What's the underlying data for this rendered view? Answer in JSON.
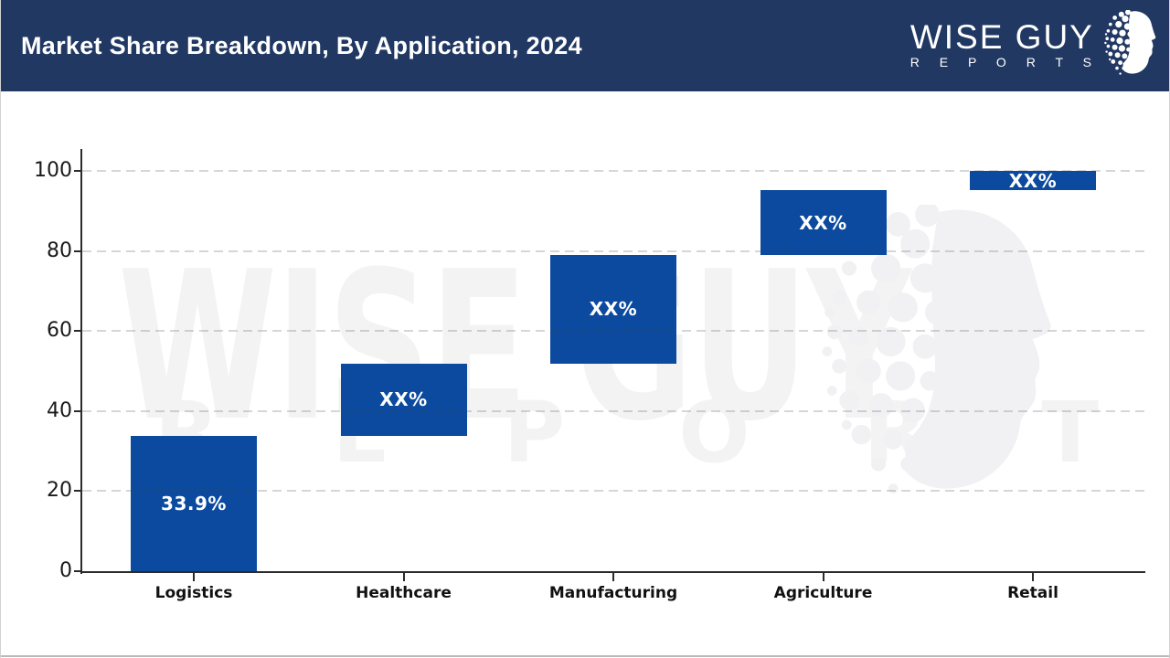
{
  "header": {
    "title": "Market Share Breakdown, By Application, 2024",
    "logo": {
      "line1": "WISE GUY",
      "line2": "R E P O R T S"
    }
  },
  "watermark": {
    "line1": "WISE GUY",
    "line2": "R E P O R T S"
  },
  "colors": {
    "header_bg": "#213863",
    "bar_fill": "#0b4a9e",
    "bar_label": "#ffffff",
    "axis": "#2b2b2b",
    "watermark": "#f3f3f3"
  },
  "chart_data": {
    "type": "bar",
    "subtype": "waterfall",
    "title": "Market Share Breakdown, By Application, 2024",
    "categories": [
      "Logistics",
      "Healthcare",
      "Manufacturing",
      "Agriculture",
      "Retail"
    ],
    "segments": [
      {
        "category": "Logistics",
        "start": 0,
        "end": 33.9,
        "label": "33.9%"
      },
      {
        "category": "Healthcare",
        "start": 33.9,
        "end": 51.9,
        "label": "XX%"
      },
      {
        "category": "Manufacturing",
        "start": 51.9,
        "end": 79.0,
        "label": "XX%"
      },
      {
        "category": "Agriculture",
        "start": 79.0,
        "end": 95.1,
        "label": "XX%"
      },
      {
        "category": "Retail",
        "start": 95.1,
        "end": 100.0,
        "label": "XX%"
      }
    ],
    "xlabel": "",
    "ylabel": "",
    "ylim": [
      0,
      100
    ],
    "yticks": [
      0,
      20,
      40,
      60,
      80,
      100
    ],
    "grid": {
      "axis": "y",
      "style": "dashed"
    },
    "legend": null
  }
}
